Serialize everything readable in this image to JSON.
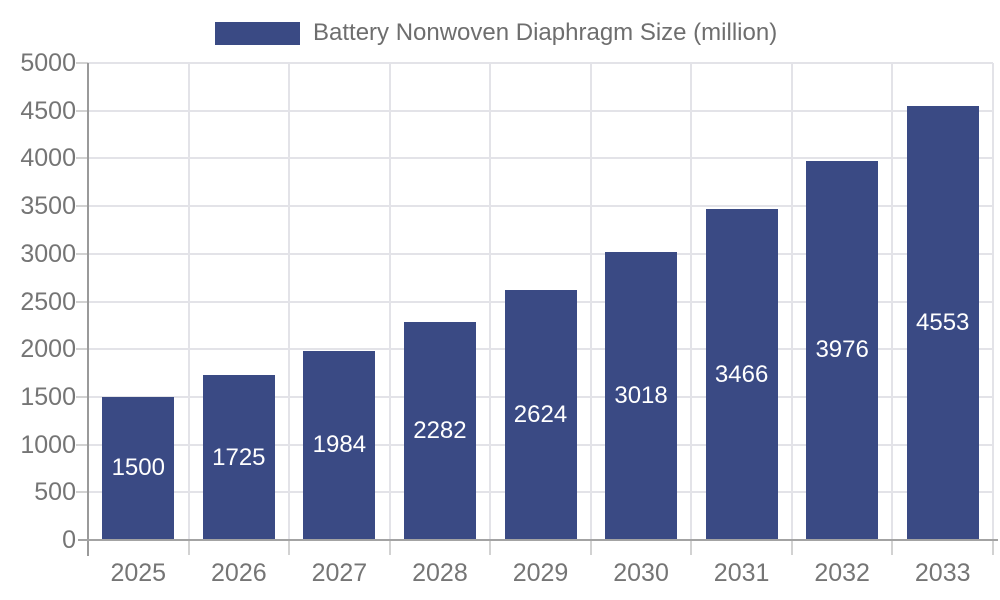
{
  "legend": {
    "label": "Battery Nonwoven Diaphragm Size (million)"
  },
  "chart_data": {
    "type": "bar",
    "title": "",
    "xlabel": "",
    "ylabel": "",
    "categories": [
      "2025",
      "2026",
      "2027",
      "2028",
      "2029",
      "2030",
      "2031",
      "2032",
      "2033"
    ],
    "values": [
      1500,
      1725,
      1984,
      2282,
      2624,
      3018,
      3466,
      3976,
      4553
    ],
    "series_name": "Battery Nonwoven Diaphragm Size (million)",
    "ylim": [
      0,
      5000
    ],
    "ytick_step": 500,
    "ytick_labels": [
      "0",
      "500",
      "1000",
      "1500",
      "2000",
      "2500",
      "3000",
      "3500",
      "4000",
      "4500",
      "5000"
    ],
    "grid": true,
    "legend_position": "top",
    "value_labels": "centered-inside-bars",
    "colors": {
      "bar": "#3A4A84",
      "value_label": "#ffffff",
      "axis_text": "#757575",
      "legend_text": "#6e6e6e",
      "gridline": "#e3e3e8",
      "axis_line": "#9a9a9a",
      "background": "#ffffff"
    }
  }
}
